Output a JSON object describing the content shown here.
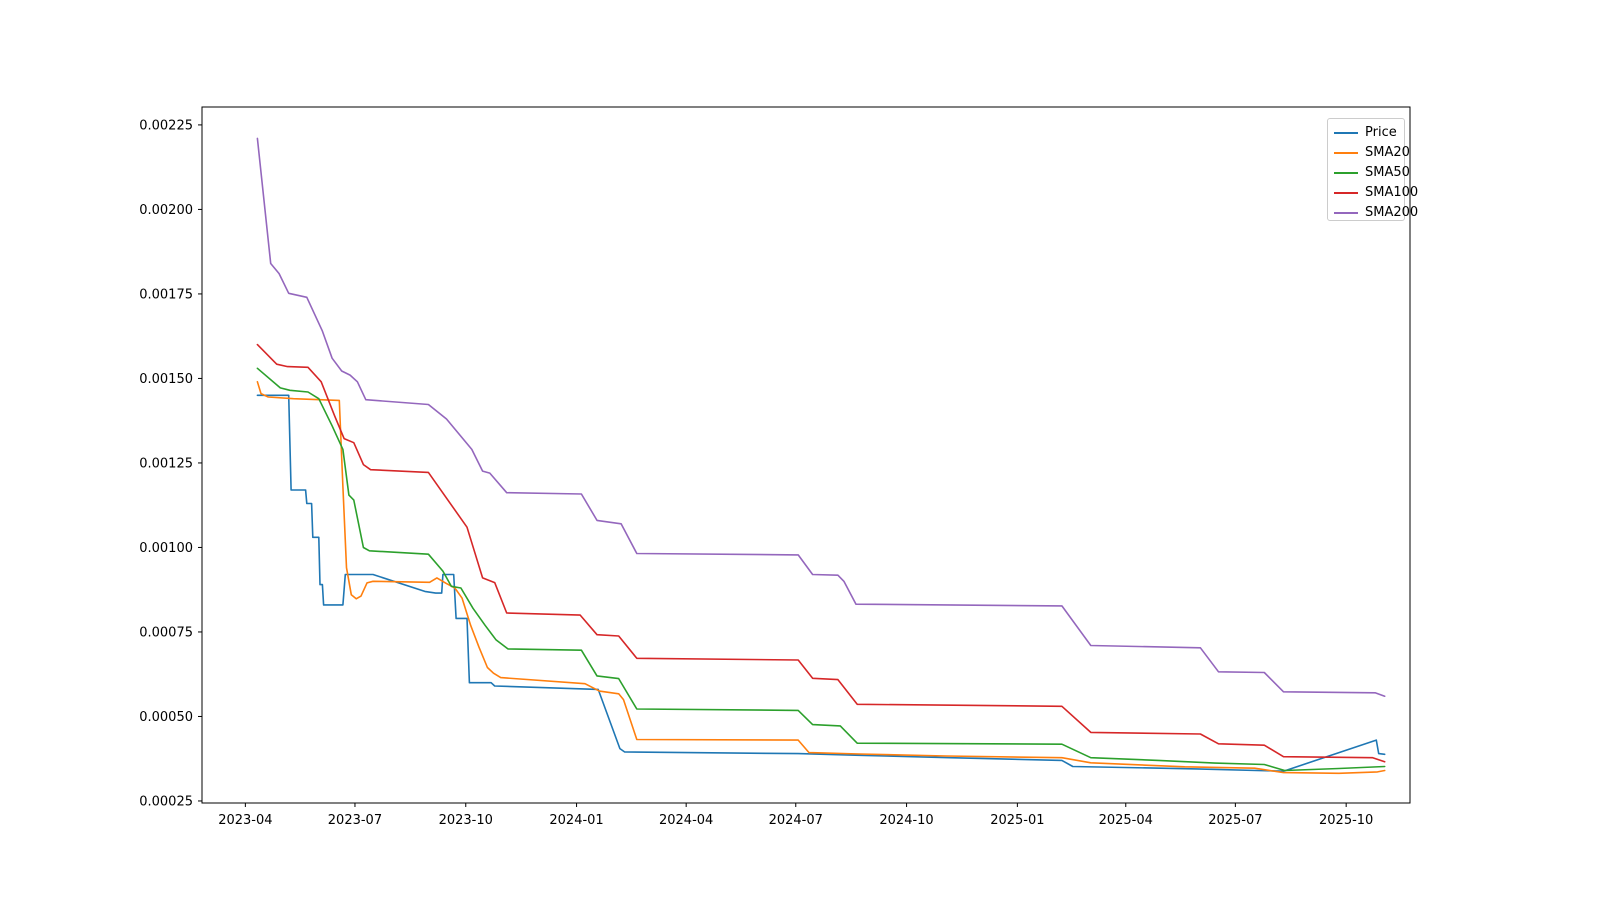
{
  "figure": {
    "background": "#ffffff",
    "plot_border_color": "#000000"
  },
  "chart_data": {
    "type": "line",
    "title": "",
    "xlabel": "",
    "ylabel": "",
    "grid": false,
    "legend_position": "upper right",
    "x_unit": "days_since_2023-01-01",
    "xlim": [
      54,
      1057
    ],
    "ylim": [
      0.000244,
      0.002303
    ],
    "x_ticks": [
      {
        "d": 90,
        "label": "2023-04"
      },
      {
        "d": 181,
        "label": "2023-07"
      },
      {
        "d": 273,
        "label": "2023-10"
      },
      {
        "d": 365,
        "label": "2024-01"
      },
      {
        "d": 456,
        "label": "2024-04"
      },
      {
        "d": 547,
        "label": "2024-07"
      },
      {
        "d": 639,
        "label": "2024-10"
      },
      {
        "d": 731,
        "label": "2025-01"
      },
      {
        "d": 821,
        "label": "2025-04"
      },
      {
        "d": 912,
        "label": "2025-07"
      },
      {
        "d": 1004,
        "label": "2025-10"
      }
    ],
    "y_ticks": [
      {
        "v": 0.00025,
        "label": "0.00025"
      },
      {
        "v": 0.0005,
        "label": "0.00050"
      },
      {
        "v": 0.00075,
        "label": "0.00075"
      },
      {
        "v": 0.001,
        "label": "0.00100"
      },
      {
        "v": 0.00125,
        "label": "0.00125"
      },
      {
        "v": 0.0015,
        "label": "0.00150"
      },
      {
        "v": 0.00175,
        "label": "0.00175"
      },
      {
        "v": 0.002,
        "label": "0.00200"
      },
      {
        "v": 0.00225,
        "label": "0.00225"
      }
    ],
    "series": [
      {
        "name": "Price",
        "color": "#1f77b4",
        "points": [
          [
            100,
            0.00145
          ],
          [
            126,
            0.00145
          ],
          [
            128,
            0.00117
          ],
          [
            140,
            0.00117
          ],
          [
            141,
            0.00113
          ],
          [
            145,
            0.00113
          ],
          [
            146,
            0.00103
          ],
          [
            151,
            0.00103
          ],
          [
            152,
            0.00089
          ],
          [
            154,
            0.00089
          ],
          [
            155,
            0.00083
          ],
          [
            171,
            0.00083
          ],
          [
            173,
            0.00092
          ],
          [
            196,
            0.00092
          ],
          [
            239,
            0.00087
          ],
          [
            248,
            0.000865
          ],
          [
            253,
            0.000865
          ],
          [
            254,
            0.00092
          ],
          [
            263,
            0.00092
          ],
          [
            265,
            0.00079
          ],
          [
            274,
            0.00079
          ],
          [
            276,
            0.0006
          ],
          [
            294,
            0.0006
          ],
          [
            297,
            0.00059
          ],
          [
            383,
            0.00058
          ],
          [
            401,
            0.000405
          ],
          [
            405,
            0.000395
          ],
          [
            549,
            0.00039
          ],
          [
            600,
            0.000385
          ],
          [
            675,
            0.000378
          ],
          [
            768,
            0.00037
          ],
          [
            777,
            0.000352
          ],
          [
            880,
            0.000345
          ],
          [
            952,
            0.000338
          ],
          [
            1029,
            0.00043
          ],
          [
            1031,
            0.00039
          ],
          [
            1036,
            0.000388
          ]
        ]
      },
      {
        "name": "SMA20",
        "color": "#ff7f0e",
        "points": [
          [
            100,
            0.00149
          ],
          [
            103,
            0.001455
          ],
          [
            109,
            0.001445
          ],
          [
            130,
            0.00144
          ],
          [
            168,
            0.001435
          ],
          [
            171,
            0.00118
          ],
          [
            174,
            0.00094
          ],
          [
            178,
            0.00086
          ],
          [
            182,
            0.000848
          ],
          [
            186,
            0.000856
          ],
          [
            191,
            0.000895
          ],
          [
            196,
            0.0009
          ],
          [
            243,
            0.000897
          ],
          [
            249,
            0.00091
          ],
          [
            257,
            0.000893
          ],
          [
            264,
            0.00088
          ],
          [
            270,
            0.00085
          ],
          [
            277,
            0.00077
          ],
          [
            284,
            0.000705
          ],
          [
            291,
            0.000645
          ],
          [
            296,
            0.000628
          ],
          [
            302,
            0.000615
          ],
          [
            372,
            0.000597
          ],
          [
            384,
            0.000575
          ],
          [
            400,
            0.000567
          ],
          [
            404,
            0.00055
          ],
          [
            415,
            0.000432
          ],
          [
            549,
            0.00043
          ],
          [
            558,
            0.000393
          ],
          [
            600,
            0.000389
          ],
          [
            672,
            0.000383
          ],
          [
            768,
            0.000378
          ],
          [
            792,
            0.000363
          ],
          [
            870,
            0.000351
          ],
          [
            928,
            0.000347
          ],
          [
            952,
            0.000334
          ],
          [
            998,
            0.000332
          ],
          [
            1030,
            0.000336
          ],
          [
            1036,
            0.00034
          ]
        ]
      },
      {
        "name": "SMA50",
        "color": "#2ca02c",
        "points": [
          [
            100,
            0.00153
          ],
          [
            119,
            0.001472
          ],
          [
            127,
            0.001465
          ],
          [
            142,
            0.00146
          ],
          [
            151,
            0.00144
          ],
          [
            162,
            0.00136
          ],
          [
            171,
            0.00129
          ],
          [
            176,
            0.001155
          ],
          [
            180,
            0.00114
          ],
          [
            188,
            0.001
          ],
          [
            193,
            0.00099
          ],
          [
            242,
            0.00098
          ],
          [
            254,
            0.00093
          ],
          [
            261,
            0.000885
          ],
          [
            269,
            0.00088
          ],
          [
            279,
            0.00082
          ],
          [
            289,
            0.00077
          ],
          [
            298,
            0.000727
          ],
          [
            308,
            0.0007
          ],
          [
            369,
            0.000696
          ],
          [
            382,
            0.00062
          ],
          [
            400,
            0.000612
          ],
          [
            415,
            0.000522
          ],
          [
            549,
            0.000518
          ],
          [
            561,
            0.000476
          ],
          [
            584,
            0.000472
          ],
          [
            598,
            0.000421
          ],
          [
            768,
            0.000418
          ],
          [
            792,
            0.000378
          ],
          [
            848,
            0.00037
          ],
          [
            895,
            0.000362
          ],
          [
            936,
            0.000358
          ],
          [
            953,
            0.00034
          ],
          [
            998,
            0.000346
          ],
          [
            1036,
            0.000352
          ]
        ]
      },
      {
        "name": "SMA100",
        "color": "#d62728",
        "points": [
          [
            100,
            0.0016
          ],
          [
            116,
            0.001542
          ],
          [
            125,
            0.001535
          ],
          [
            142,
            0.001533
          ],
          [
            153,
            0.00149
          ],
          [
            164,
            0.00139
          ],
          [
            172,
            0.001322
          ],
          [
            180,
            0.00131
          ],
          [
            188,
            0.001245
          ],
          [
            194,
            0.00123
          ],
          [
            242,
            0.001222
          ],
          [
            274,
            0.00106
          ],
          [
            287,
            0.00091
          ],
          [
            297,
            0.000896
          ],
          [
            307,
            0.000806
          ],
          [
            368,
            0.0008
          ],
          [
            382,
            0.000742
          ],
          [
            400,
            0.000738
          ],
          [
            415,
            0.000672
          ],
          [
            549,
            0.000667
          ],
          [
            561,
            0.000613
          ],
          [
            582,
            0.000609
          ],
          [
            598,
            0.000536
          ],
          [
            768,
            0.00053
          ],
          [
            792,
            0.000453
          ],
          [
            883,
            0.000448
          ],
          [
            898,
            0.000419
          ],
          [
            936,
            0.000415
          ],
          [
            952,
            0.000381
          ],
          [
            1026,
            0.000378
          ],
          [
            1036,
            0.000366
          ]
        ]
      },
      {
        "name": "SMA200",
        "color": "#9467bd",
        "points": [
          [
            100,
            0.00221
          ],
          [
            111,
            0.00184
          ],
          [
            118,
            0.00181
          ],
          [
            126,
            0.001752
          ],
          [
            141,
            0.00174
          ],
          [
            154,
            0.00164
          ],
          [
            162,
            0.00156
          ],
          [
            170,
            0.001522
          ],
          [
            177,
            0.00151
          ],
          [
            183,
            0.00149
          ],
          [
            190,
            0.001437
          ],
          [
            242,
            0.001423
          ],
          [
            257,
            0.00138
          ],
          [
            278,
            0.00129
          ],
          [
            287,
            0.001226
          ],
          [
            293,
            0.00122
          ],
          [
            307,
            0.001162
          ],
          [
            369,
            0.001158
          ],
          [
            382,
            0.00108
          ],
          [
            402,
            0.00107
          ],
          [
            415,
            0.000982
          ],
          [
            549,
            0.000978
          ],
          [
            561,
            0.00092
          ],
          [
            582,
            0.000918
          ],
          [
            587,
            0.0009
          ],
          [
            597,
            0.000832
          ],
          [
            768,
            0.000827
          ],
          [
            792,
            0.00071
          ],
          [
            883,
            0.000703
          ],
          [
            898,
            0.000632
          ],
          [
            936,
            0.00063
          ],
          [
            952,
            0.000573
          ],
          [
            1028,
            0.00057
          ],
          [
            1036,
            0.00056
          ]
        ]
      }
    ]
  }
}
